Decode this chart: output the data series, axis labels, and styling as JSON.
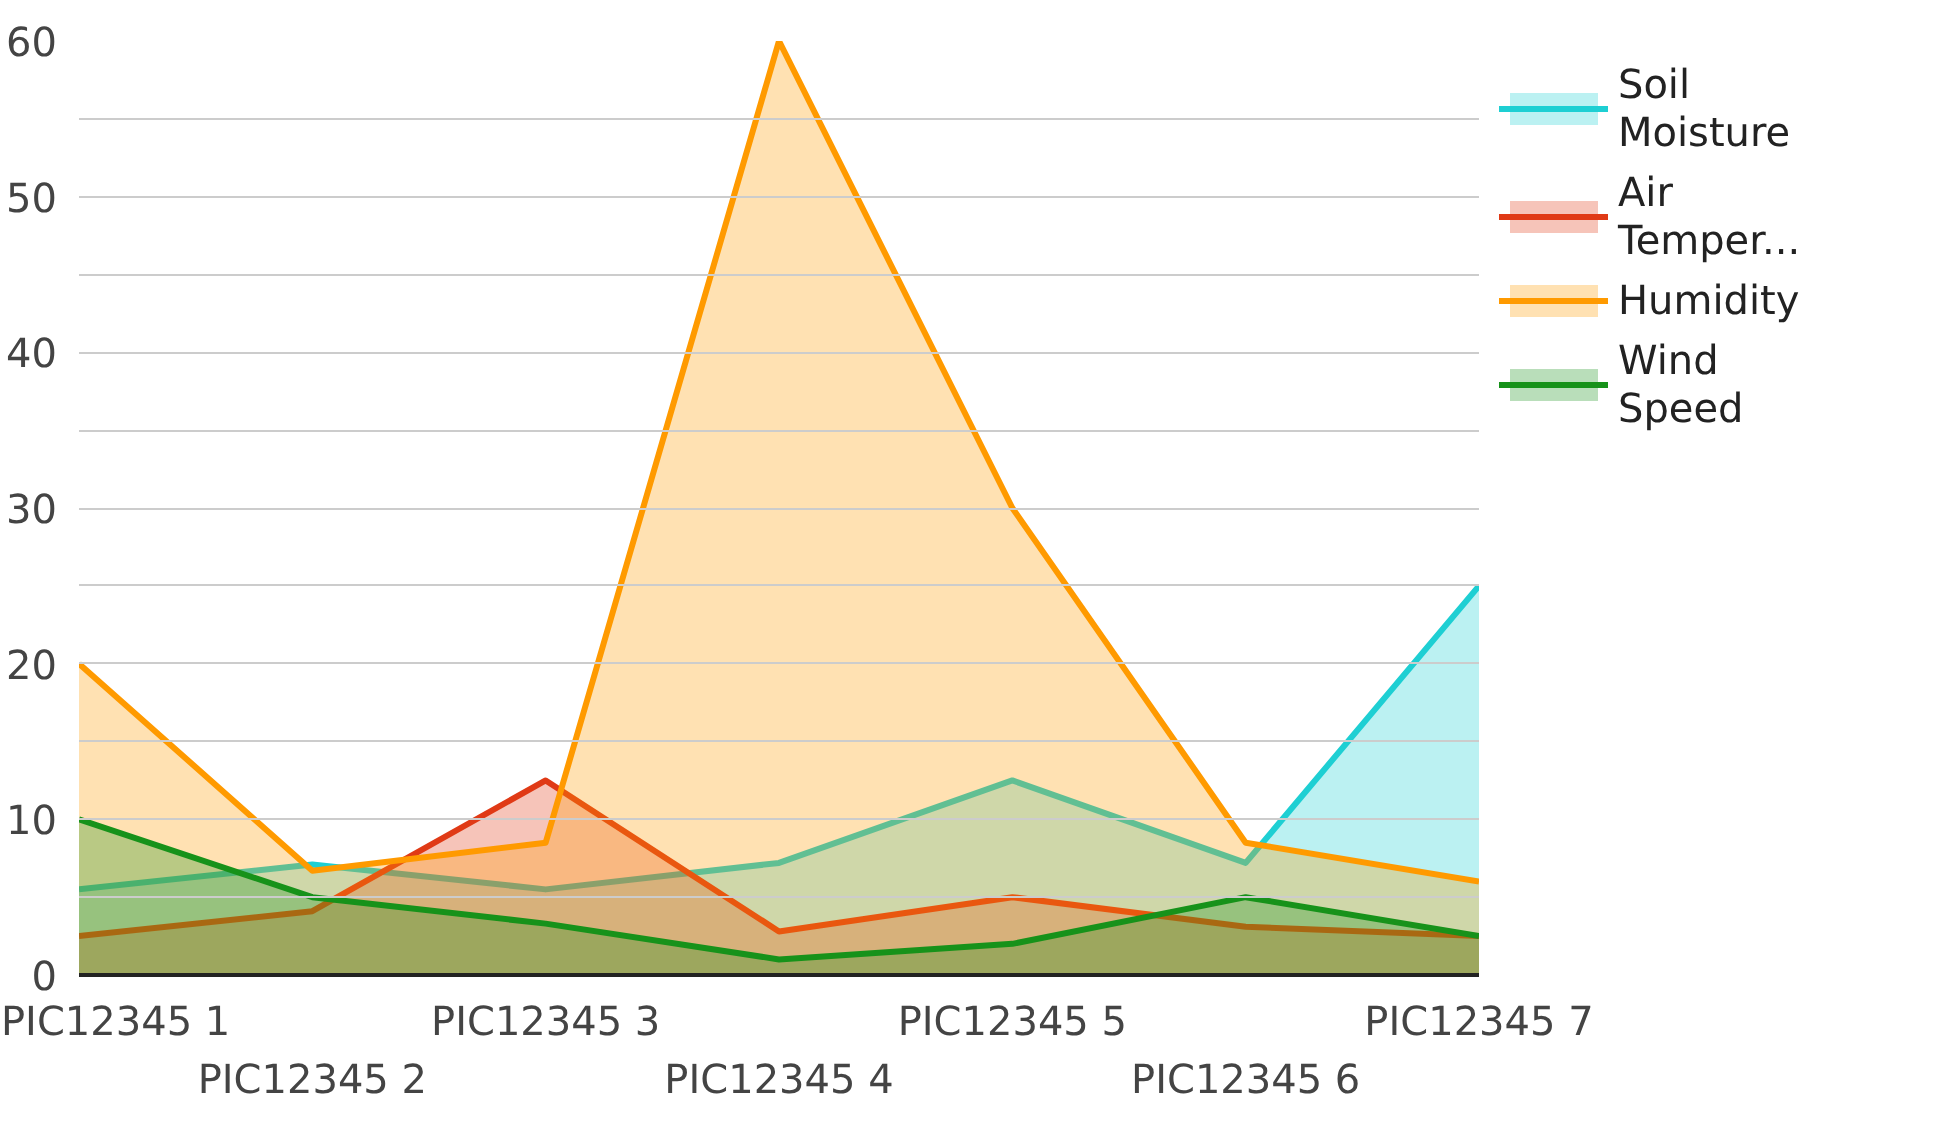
{
  "chart_data": {
    "type": "area",
    "categories": [
      "PIC12345 1",
      "PIC12345 2",
      "PIC12345 3",
      "PIC12345 4",
      "PIC12345 5",
      "PIC12345 6",
      "PIC12345 7"
    ],
    "series": [
      {
        "name": "Soil Moisture",
        "color": "#1ecfd3",
        "values": [
          5.5,
          7.1,
          5.5,
          7.2,
          12.5,
          7.2,
          25
        ]
      },
      {
        "name": "Air Temper...",
        "color": "#e03a16",
        "values": [
          2.5,
          4.1,
          12.5,
          2.8,
          5,
          3.1,
          2.5
        ]
      },
      {
        "name": "Humidity",
        "color": "#ff9a00",
        "values": [
          20,
          6.7,
          8.5,
          60,
          30,
          8.5,
          6
        ]
      },
      {
        "name": "Wind Speed",
        "color": "#17921a",
        "values": [
          10,
          5,
          3.3,
          1,
          2,
          5,
          2.5
        ]
      }
    ],
    "ylim": [
      0,
      60
    ],
    "yticks": [
      0,
      {
        "value": 5,
        "label": null
      },
      10,
      {
        "value": 15,
        "label": null
      },
      20,
      {
        "value": 25,
        "label": null
      },
      30,
      {
        "value": 35,
        "label": null
      },
      40,
      {
        "value": 45,
        "label": null
      },
      50,
      {
        "value": 55,
        "label": null
      },
      60
    ],
    "grid": "y",
    "legend": "right"
  }
}
